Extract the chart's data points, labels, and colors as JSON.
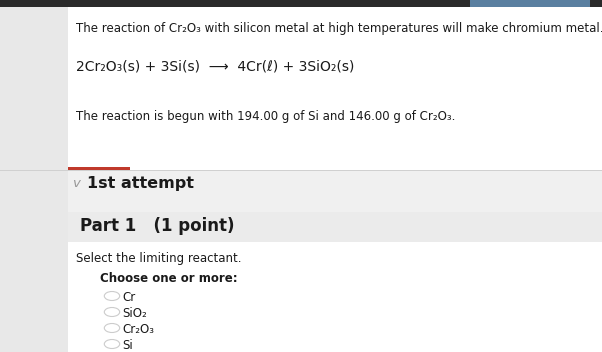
{
  "bg_color": "#e8e8e8",
  "top_bar_color": "#2a2a2a",
  "white_panel_color": "#ffffff",
  "gray_panel_color": "#f0f0f0",
  "part_header_color": "#ebebeb",
  "title_text": "The reaction of Cr₂O₃ with silicon metal at high temperatures will make chromium metal.",
  "equation_text": "2Cr₂O₃(s) + 3Si(s)  ⟶  4Cr(ℓ) + 3SiO₂(s)",
  "given_text": "The reaction is begun with 194.00 g of Si and 146.00 g of Cr₂O₃.",
  "attempt_label": "1st attempt",
  "part_label": "Part 1   (1 point)",
  "select_text": "Select the limiting reactant.",
  "choose_text": "Choose one or more:",
  "options": [
    "Cr",
    "SiO₂",
    "Cr₂O₃",
    "Si"
  ],
  "red_bar_color": "#c0392b",
  "divider_color": "#d0d0d0",
  "chevron_color": "#999999",
  "text_color": "#1a1a1a",
  "option_circle_color": "#cccccc",
  "title_fontsize": 8.5,
  "equation_fontsize": 10.0,
  "given_fontsize": 8.5,
  "attempt_fontsize": 11.5,
  "part_fontsize": 12.0,
  "select_fontsize": 8.5,
  "choose_fontsize": 8.5,
  "option_fontsize": 8.5,
  "fig_width": 6.02,
  "fig_height": 3.52,
  "dpi": 100
}
